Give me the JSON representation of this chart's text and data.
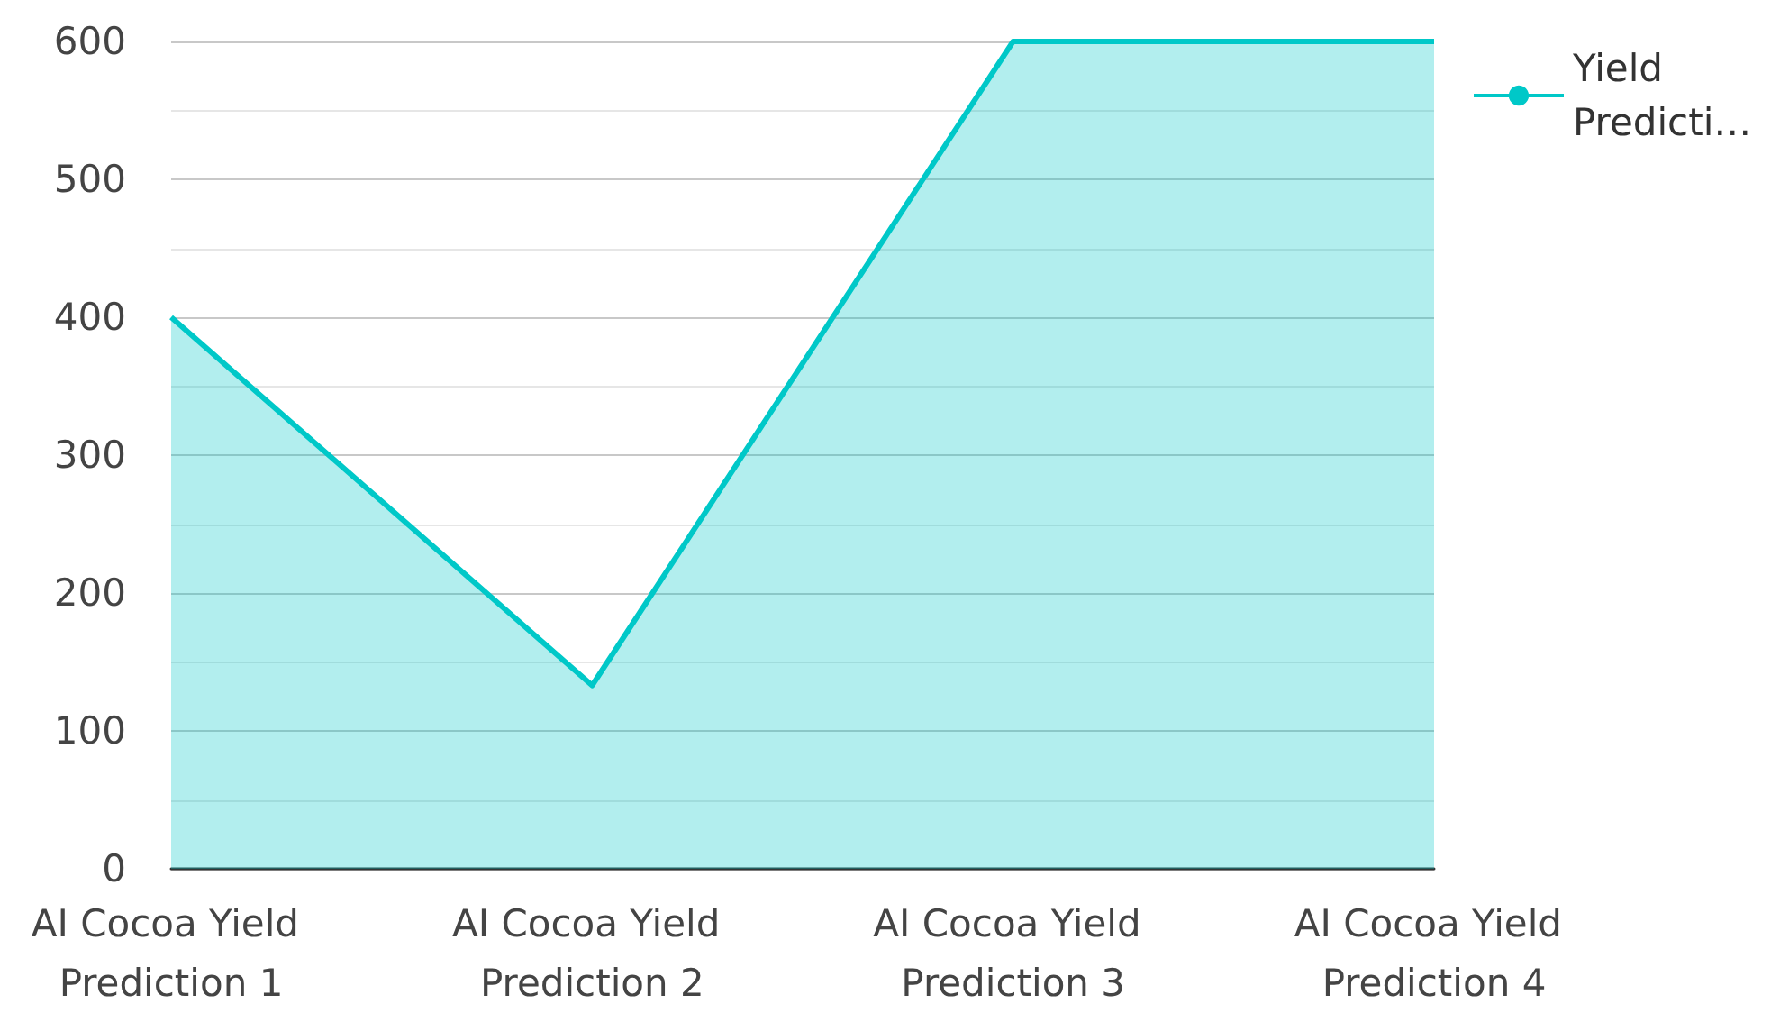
{
  "chart_data": {
    "type": "area",
    "categories": [
      "AI Cocoa Yield Prediction 1",
      "AI Cocoa Yield Prediction 2",
      "AI Cocoa Yield Prediction 3",
      "AI Cocoa Yield Prediction 4"
    ],
    "series": [
      {
        "name": "Yield Predicti…",
        "color": "#00c8c8",
        "values": [
          400,
          133,
          600,
          600
        ]
      }
    ],
    "ylim": [
      0,
      600
    ],
    "yticks": [
      0,
      100,
      200,
      300,
      400,
      500,
      600
    ],
    "grid": "y",
    "legend": "top right",
    "marker": "none",
    "line_style": "solid"
  }
}
